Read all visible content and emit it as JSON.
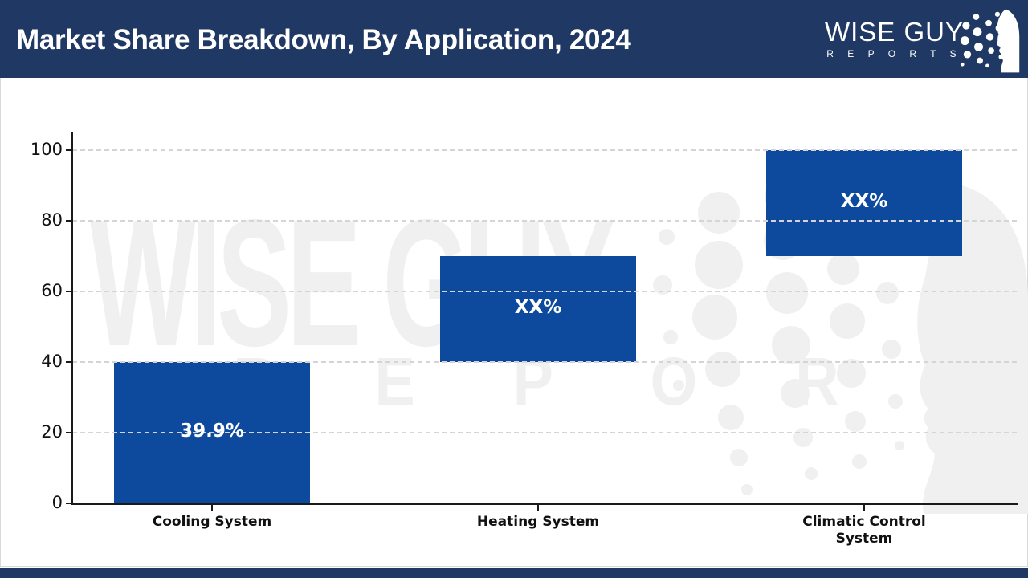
{
  "header": {
    "title": "Market Share Breakdown, By Application, 2024",
    "logo": {
      "line1": "WISE GUY",
      "line2": "R E P O R T S"
    }
  },
  "watermark": {
    "line1": "WISE GUY",
    "line2": "R E P O R T S"
  },
  "chart_data": {
    "type": "bar",
    "subtype": "floating-segment-waterfall",
    "title": "Market Share Breakdown, By Application, 2024",
    "categories": [
      "Cooling System",
      "Heating System",
      "Climatic Control System"
    ],
    "segments": [
      {
        "category": "Cooling System",
        "start": 0,
        "end": 39.9,
        "label": "39.9%"
      },
      {
        "category": "Heating System",
        "start": 40,
        "end": 70,
        "label": "XX%"
      },
      {
        "category": "Climatic Control System",
        "start": 70,
        "end": 100,
        "label": "XX%"
      }
    ],
    "xlabel": "",
    "ylabel": "",
    "yticks": [
      0,
      20,
      40,
      60,
      80,
      100
    ],
    "ylim": [
      0,
      105
    ],
    "grid": "horizontal-dashed-over-bars",
    "legend": "none",
    "colors": {
      "bar": "#0d4a9e",
      "bar_label": "#ffffff",
      "axis": "#1a1a1a",
      "gridline": "#d5d5d5",
      "header_bg": "#203864",
      "footer_bg": "#203864",
      "watermark": "#f0f0f1"
    }
  }
}
